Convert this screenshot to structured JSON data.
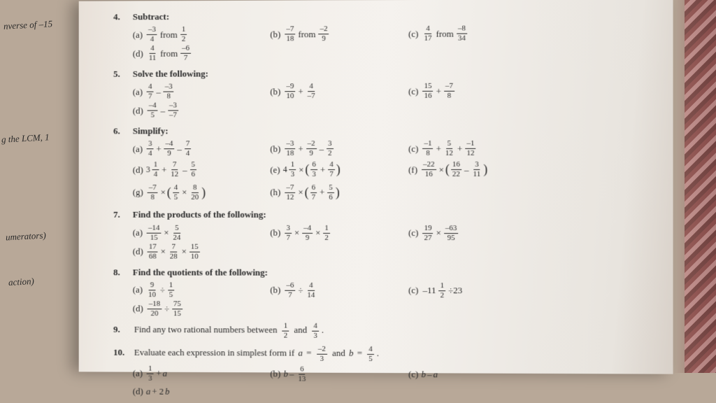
{
  "leftMargin": {
    "text1": "nverse of –15",
    "text2": "g the LCM, 1",
    "text3": "umerators)",
    "text4": "action)"
  },
  "questions": [
    {
      "num": "4.",
      "title": "Subtract:",
      "parts": [
        {
          "label": "(a)",
          "content": [
            {
              "frac": [
                "–3",
                "4"
              ]
            },
            {
              "text": " from "
            },
            {
              "frac": [
                "1",
                "2"
              ]
            }
          ]
        },
        {
          "label": "(b)",
          "content": [
            {
              "frac": [
                "–7",
                "18"
              ]
            },
            {
              "text": " from "
            },
            {
              "frac": [
                "–2",
                "9"
              ]
            }
          ]
        },
        {
          "label": "(c)",
          "content": [
            {
              "frac": [
                "4",
                "17"
              ]
            },
            {
              "text": " from "
            },
            {
              "frac": [
                "–8",
                "34"
              ]
            }
          ]
        },
        {
          "label": "(d)",
          "content": [
            {
              "frac": [
                "4",
                "11"
              ]
            },
            {
              "text": " from "
            },
            {
              "frac": [
                "–6",
                "7"
              ]
            }
          ]
        }
      ]
    },
    {
      "num": "5.",
      "title": "Solve the following:",
      "parts": [
        {
          "label": "(a)",
          "content": [
            {
              "frac": [
                "4",
                "7"
              ]
            },
            {
              "text": "–"
            },
            {
              "frac": [
                "–3",
                "8"
              ]
            }
          ]
        },
        {
          "label": "(b)",
          "content": [
            {
              "frac": [
                "–9",
                "10"
              ]
            },
            {
              "text": "+"
            },
            {
              "frac": [
                "4",
                "–7"
              ]
            }
          ]
        },
        {
          "label": "(c)",
          "content": [
            {
              "frac": [
                "15",
                "16"
              ]
            },
            {
              "text": "+"
            },
            {
              "frac": [
                "–7",
                "8"
              ]
            }
          ]
        },
        {
          "label": "(d)",
          "content": [
            {
              "frac": [
                "–4",
                "5"
              ]
            },
            {
              "text": "–"
            },
            {
              "frac": [
                "–3",
                "–7"
              ]
            }
          ]
        }
      ]
    },
    {
      "num": "6.",
      "title": "Simplify:",
      "parts": [
        {
          "label": "(a)",
          "content": [
            {
              "frac": [
                "3",
                "4"
              ]
            },
            {
              "text": "+"
            },
            {
              "frac": [
                "–4",
                "9"
              ]
            },
            {
              "text": "–"
            },
            {
              "frac": [
                "7",
                "4"
              ]
            }
          ]
        },
        {
          "label": "(b)",
          "content": [
            {
              "frac": [
                "–3",
                "18"
              ]
            },
            {
              "text": "+"
            },
            {
              "frac": [
                "–2",
                "9"
              ]
            },
            {
              "text": "–"
            },
            {
              "frac": [
                "3",
                "2"
              ]
            }
          ]
        },
        {
          "label": "(c)",
          "content": [
            {
              "frac": [
                "–1",
                "8"
              ]
            },
            {
              "text": "+"
            },
            {
              "frac": [
                "5",
                "12"
              ]
            },
            {
              "text": "+"
            },
            {
              "frac": [
                "–1",
                "12"
              ]
            }
          ]
        },
        {
          "label": "(d)",
          "content": [
            {
              "mixed": [
                "3",
                "1",
                "4"
              ]
            },
            {
              "text": "+"
            },
            {
              "frac": [
                "7",
                "12"
              ]
            },
            {
              "text": "–"
            },
            {
              "frac": [
                "5",
                "6"
              ]
            }
          ]
        },
        {
          "label": "(e)",
          "content": [
            {
              "mixed": [
                "4",
                "1",
                "3"
              ]
            },
            {
              "text": "×"
            },
            {
              "paren": "("
            },
            {
              "frac": [
                "6",
                "3"
              ]
            },
            {
              "text": "+"
            },
            {
              "frac": [
                "4",
                "7"
              ]
            },
            {
              "paren": ")"
            }
          ]
        },
        {
          "label": "(f)",
          "content": [
            {
              "frac": [
                "–22",
                "16"
              ]
            },
            {
              "text": "×"
            },
            {
              "paren": "("
            },
            {
              "frac": [
                "16",
                "22"
              ]
            },
            {
              "text": "–"
            },
            {
              "frac": [
                "3",
                "11"
              ]
            },
            {
              "paren": ")"
            }
          ]
        },
        {
          "label": "(g)",
          "content": [
            {
              "frac": [
                "–7",
                "8"
              ]
            },
            {
              "text": "×"
            },
            {
              "paren": "("
            },
            {
              "frac": [
                "4",
                "5"
              ]
            },
            {
              "text": "×"
            },
            {
              "frac": [
                "8",
                "20"
              ]
            },
            {
              "paren": ")"
            }
          ]
        },
        {
          "label": "(h)",
          "content": [
            {
              "frac": [
                "–7",
                "12"
              ]
            },
            {
              "text": "×"
            },
            {
              "paren": "("
            },
            {
              "frac": [
                "6",
                "7"
              ]
            },
            {
              "text": "+"
            },
            {
              "frac": [
                "5",
                "6"
              ]
            },
            {
              "paren": ")"
            }
          ]
        }
      ]
    },
    {
      "num": "7.",
      "title": "Find the products of the following:",
      "parts": [
        {
          "label": "(a)",
          "content": [
            {
              "frac": [
                "–14",
                "15"
              ]
            },
            {
              "text": "×"
            },
            {
              "frac": [
                "5",
                "24"
              ]
            }
          ]
        },
        {
          "label": "(b)",
          "content": [
            {
              "frac": [
                "3",
                "7"
              ]
            },
            {
              "text": "×"
            },
            {
              "frac": [
                "–4",
                "9"
              ]
            },
            {
              "text": "×"
            },
            {
              "frac": [
                "1",
                "2"
              ]
            }
          ]
        },
        {
          "label": "(c)",
          "content": [
            {
              "frac": [
                "19",
                "27"
              ]
            },
            {
              "text": "×"
            },
            {
              "frac": [
                "–63",
                "95"
              ]
            }
          ]
        },
        {
          "label": "(d)",
          "content": [
            {
              "frac": [
                "17",
                "68"
              ]
            },
            {
              "text": "×"
            },
            {
              "frac": [
                "7",
                "28"
              ]
            },
            {
              "text": "×"
            },
            {
              "frac": [
                "15",
                "10"
              ]
            }
          ]
        }
      ]
    },
    {
      "num": "8.",
      "title": "Find the quotients of the following:",
      "parts": [
        {
          "label": "(a)",
          "content": [
            {
              "frac": [
                "9",
                "10"
              ]
            },
            {
              "text": "÷"
            },
            {
              "frac": [
                "1",
                "5"
              ]
            }
          ]
        },
        {
          "label": "(b)",
          "content": [
            {
              "frac": [
                "–6",
                "7"
              ]
            },
            {
              "text": "÷"
            },
            {
              "frac": [
                "4",
                "14"
              ]
            }
          ]
        },
        {
          "label": "(c)",
          "content": [
            {
              "text": "–11"
            },
            {
              "frac": [
                "1",
                "2"
              ]
            },
            {
              "text": "÷23"
            }
          ]
        },
        {
          "label": "(d)",
          "content": [
            {
              "frac": [
                "–18",
                "20"
              ]
            },
            {
              "text": "÷"
            },
            {
              "frac": [
                "75",
                "15"
              ]
            }
          ]
        }
      ]
    },
    {
      "num": "9.",
      "title_inline": true,
      "content": [
        {
          "text": "Find any two rational numbers between "
        },
        {
          "frac": [
            "1",
            "2"
          ]
        },
        {
          "text": " and "
        },
        {
          "frac": [
            "4",
            "3"
          ]
        },
        {
          "text": "."
        }
      ]
    },
    {
      "num": "10.",
      "title_inline": true,
      "content": [
        {
          "text": "Evaluate each expression in simplest form if "
        },
        {
          "var": "a"
        },
        {
          "text": " = "
        },
        {
          "frac": [
            "–2",
            "3"
          ]
        },
        {
          "text": " and "
        },
        {
          "var": "b"
        },
        {
          "text": " = "
        },
        {
          "frac": [
            "4",
            "5"
          ]
        },
        {
          "text": "."
        }
      ],
      "parts": [
        {
          "label": "(a)",
          "content": [
            {
              "frac": [
                "1",
                "3"
              ]
            },
            {
              "text": "+"
            },
            {
              "var": "a"
            }
          ]
        },
        {
          "label": "(b)",
          "content": [
            {
              "var": "b"
            },
            {
              "text": "–"
            },
            {
              "frac": [
                "6",
                "13"
              ]
            }
          ]
        },
        {
          "label": "(c)",
          "content": [
            {
              "var": "b"
            },
            {
              "text": " – "
            },
            {
              "var": "a"
            }
          ]
        },
        {
          "label": "(d)",
          "content": [
            {
              "var": "a"
            },
            {
              "text": " + 2"
            },
            {
              "var": "b"
            }
          ]
        }
      ]
    }
  ]
}
